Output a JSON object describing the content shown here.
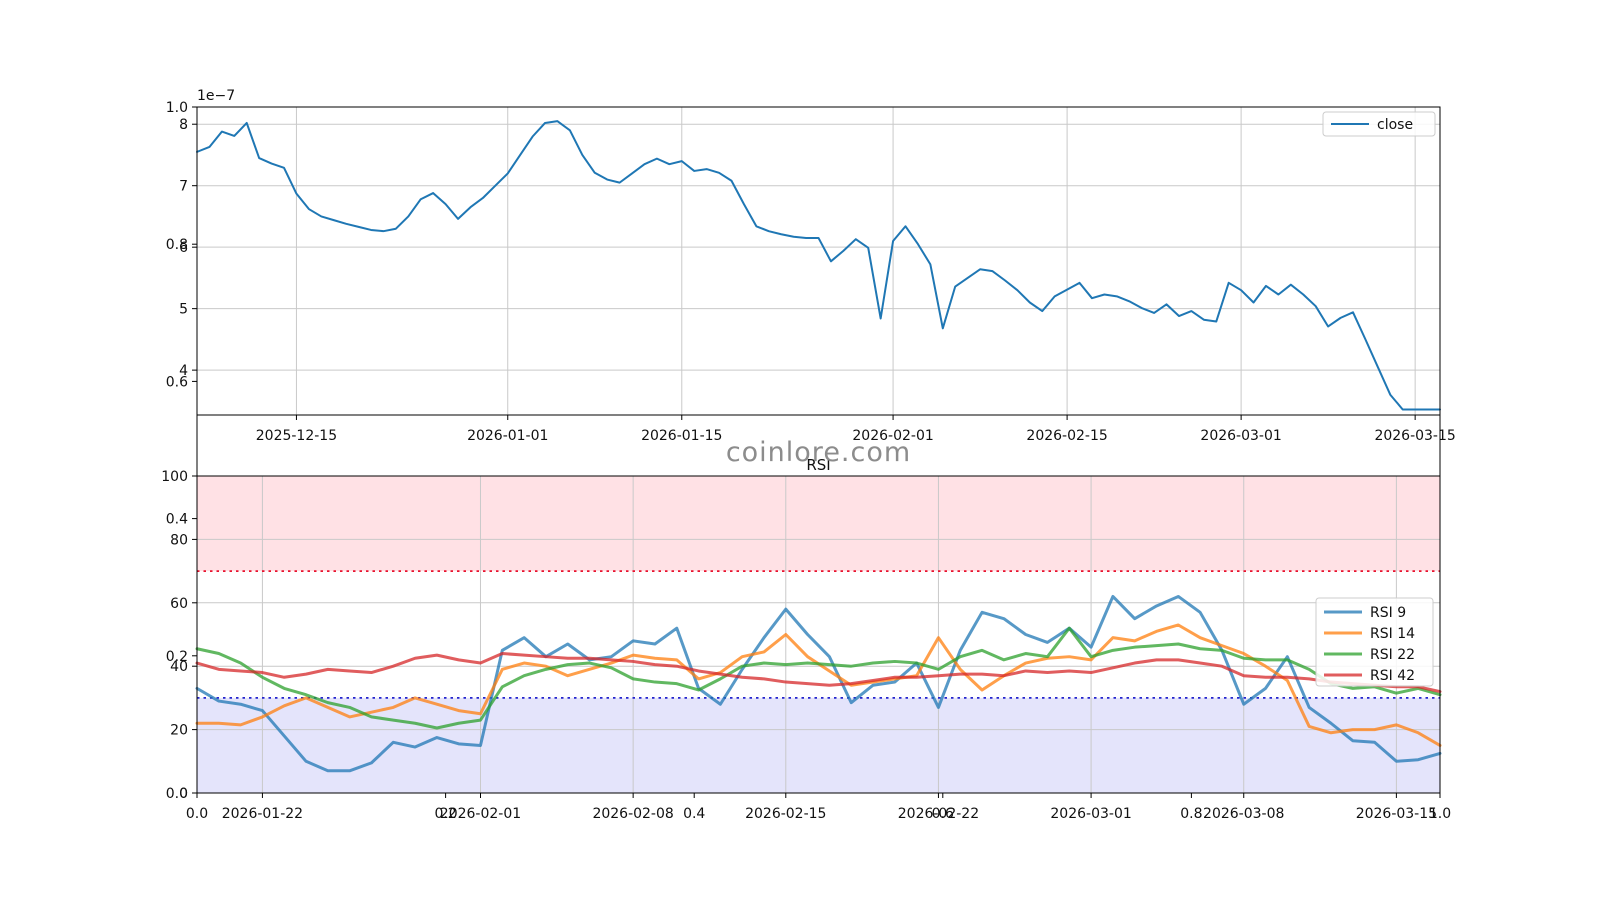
{
  "watermark": {
    "text": "coinlore.com",
    "color": "#8c8c8c"
  },
  "secondary_axis": {
    "yticks": [
      "1.0",
      "0.8",
      "0.6",
      "0.4",
      "0.2",
      "0.0"
    ],
    "xticks": [
      "0.0",
      "0.2",
      "0.4",
      "0.6",
      "0.8",
      "1.0"
    ]
  },
  "chart_data": [
    {
      "type": "line",
      "title": "",
      "x_start": "2025-12-07",
      "x_end": "2026-03-17",
      "x_unit": "day",
      "y_offset_label": "1e−7",
      "y_scale": 1e-07,
      "ylim": [
        3.27,
        8.28
      ],
      "grid": true,
      "legend_position": "upper right",
      "yticks": [
        {
          "label": "4",
          "value": 4
        },
        {
          "label": "5",
          "value": 5
        },
        {
          "label": "6",
          "value": 6
        },
        {
          "label": "7",
          "value": 7
        },
        {
          "label": "8",
          "value": 8
        }
      ],
      "xticks": [
        {
          "label": "2025-12-15",
          "day": 8
        },
        {
          "label": "2026-01-01",
          "day": 25
        },
        {
          "label": "2026-01-15",
          "day": 39
        },
        {
          "label": "2026-02-01",
          "day": 56
        },
        {
          "label": "2026-02-15",
          "day": 70
        },
        {
          "label": "2026-03-01",
          "day": 84
        },
        {
          "label": "2026-03-15",
          "day": 98
        }
      ],
      "series": [
        {
          "name": "close",
          "color": "#1f77b4",
          "width": 2,
          "values": [
            7.55,
            7.63,
            7.88,
            7.81,
            8.02,
            7.45,
            7.36,
            7.29,
            6.87,
            6.62,
            6.5,
            6.44,
            6.38,
            6.33,
            6.28,
            6.26,
            6.3,
            6.5,
            6.78,
            6.88,
            6.7,
            6.46,
            6.65,
            6.8,
            7.0,
            7.2,
            7.5,
            7.8,
            8.02,
            8.05,
            7.9,
            7.5,
            7.21,
            7.1,
            7.05,
            7.2,
            7.35,
            7.44,
            7.35,
            7.4,
            7.24,
            7.27,
            7.21,
            7.08,
            6.7,
            6.34,
            6.26,
            6.21,
            6.17,
            6.15,
            6.15,
            5.77,
            5.94,
            6.13,
            5.99,
            4.84,
            6.1,
            6.34,
            6.05,
            5.72,
            4.68,
            5.36,
            5.5,
            5.64,
            5.61,
            5.46,
            5.3,
            5.1,
            4.96,
            5.2,
            5.31,
            5.42,
            5.17,
            5.23,
            5.2,
            5.12,
            5.01,
            4.93,
            5.07,
            4.88,
            4.96,
            4.82,
            4.79,
            5.42,
            5.3,
            5.1,
            5.37,
            5.23,
            5.39,
            5.23,
            5.04,
            4.71,
            4.85,
            4.94,
            4.5,
            4.05,
            3.6,
            3.36,
            3.36,
            3.36,
            3.36
          ]
        }
      ]
    },
    {
      "type": "line",
      "title": "RSI",
      "x_start": "2026-01-19",
      "x_end": "2026-03-17",
      "x_unit": "day",
      "ylim": [
        0,
        100
      ],
      "grid": true,
      "legend_position": "center right",
      "yticks": [
        {
          "label": "0",
          "value": 0
        },
        {
          "label": "20",
          "value": 20
        },
        {
          "label": "40",
          "value": 40
        },
        {
          "label": "60",
          "value": 60
        },
        {
          "label": "80",
          "value": 80
        },
        {
          "label": "100",
          "value": 100
        }
      ],
      "xticks": [
        {
          "label": "2026-01-22",
          "day": 3
        },
        {
          "label": "2026-02-01",
          "day": 13
        },
        {
          "label": "2026-02-08",
          "day": 20
        },
        {
          "label": "2026-02-15",
          "day": 27
        },
        {
          "label": "2026-02-22",
          "day": 34
        },
        {
          "label": "2026-03-01",
          "day": 41
        },
        {
          "label": "2026-03-08",
          "day": 48
        },
        {
          "label": "2026-03-15",
          "day": 55
        }
      ],
      "bands": [
        {
          "name": "overbought-band",
          "range": [
            70,
            100
          ],
          "color": "rgba(255,45,70,0.14)"
        },
        {
          "name": "oversold-band",
          "range": [
            0,
            30
          ],
          "color": "rgba(75,75,230,0.15)"
        }
      ],
      "hlines": [
        {
          "name": "overbought-line",
          "y": 70,
          "color": "#e8112d",
          "style": "dotted"
        },
        {
          "name": "oversold-line",
          "y": 30,
          "color": "#2323cd",
          "style": "dotted"
        }
      ],
      "series": [
        {
          "name": "RSI 9",
          "color": "rgba(31,119,180,0.75)",
          "width": 3,
          "values": [
            33,
            29,
            28,
            26,
            18,
            10,
            7,
            7,
            9.5,
            16,
            14.5,
            17.5,
            15.5,
            15,
            45,
            49,
            43,
            47,
            42,
            43,
            48,
            47,
            52,
            33,
            28,
            39,
            49,
            58,
            50,
            43,
            28.5,
            34,
            35,
            41,
            27,
            45,
            57,
            55,
            50,
            47.5,
            52,
            46,
            62,
            55,
            59,
            62,
            57,
            45,
            28,
            33,
            43,
            27,
            22,
            16.5,
            16,
            10,
            10.5,
            12.5
          ]
        },
        {
          "name": "RSI 14",
          "color": "rgba(255,127,14,0.75)",
          "width": 3,
          "values": [
            22,
            22,
            21.5,
            24,
            27.5,
            30,
            27,
            24,
            25.5,
            27,
            30,
            28,
            26,
            25,
            39,
            41,
            40,
            37,
            39,
            41,
            43.5,
            42.5,
            42,
            36,
            38,
            43,
            44.5,
            50,
            43,
            38.5,
            34,
            35,
            36,
            37,
            49,
            39,
            32.5,
            37,
            41,
            42.5,
            43,
            42,
            49,
            48,
            51,
            53,
            49,
            46.5,
            44,
            40,
            35.5,
            21,
            19,
            20,
            20,
            21.5,
            19,
            15
          ]
        },
        {
          "name": "RSI 22",
          "color": "rgba(44,160,44,0.75)",
          "width": 3,
          "values": [
            45.5,
            44,
            41,
            36.5,
            33,
            31,
            28.5,
            27,
            24,
            23,
            22,
            20.5,
            22,
            23,
            33.5,
            37,
            39,
            40.5,
            41,
            39.5,
            36,
            35,
            34.5,
            32.5,
            36,
            40,
            41,
            40.5,
            41,
            40.5,
            40,
            41,
            41.5,
            41,
            39,
            43,
            45,
            42,
            44,
            43,
            52,
            43,
            45,
            46,
            46.5,
            47,
            45.5,
            45,
            42.5,
            42,
            42,
            39,
            34.5,
            33,
            33.5,
            31.5,
            33,
            31
          ]
        },
        {
          "name": "RSI 42",
          "color": "rgba(214,39,40,0.75)",
          "width": 3,
          "values": [
            41,
            39,
            38.5,
            38,
            36.5,
            37.5,
            39,
            38.5,
            38,
            40,
            42.5,
            43.5,
            42,
            41,
            44,
            43.5,
            43,
            42.5,
            42.5,
            42,
            41.5,
            40.5,
            40,
            38.5,
            37.5,
            36.5,
            36,
            35,
            34.5,
            34,
            34.5,
            35.5,
            36.5,
            36.5,
            37,
            37.5,
            37.5,
            37,
            38.5,
            38,
            38.5,
            38,
            39.5,
            41,
            42,
            42,
            41,
            40,
            37,
            36.5,
            36.5,
            36,
            35,
            34.5,
            34,
            33.5,
            33.5,
            32
          ]
        }
      ]
    }
  ],
  "style": {
    "grid_color": "#c9c9c9",
    "spine_color": "#000000",
    "tick_label_color": "#111111",
    "legend_border": "#cccccc",
    "legend_bg": "rgba(255,255,255,0.85)"
  }
}
